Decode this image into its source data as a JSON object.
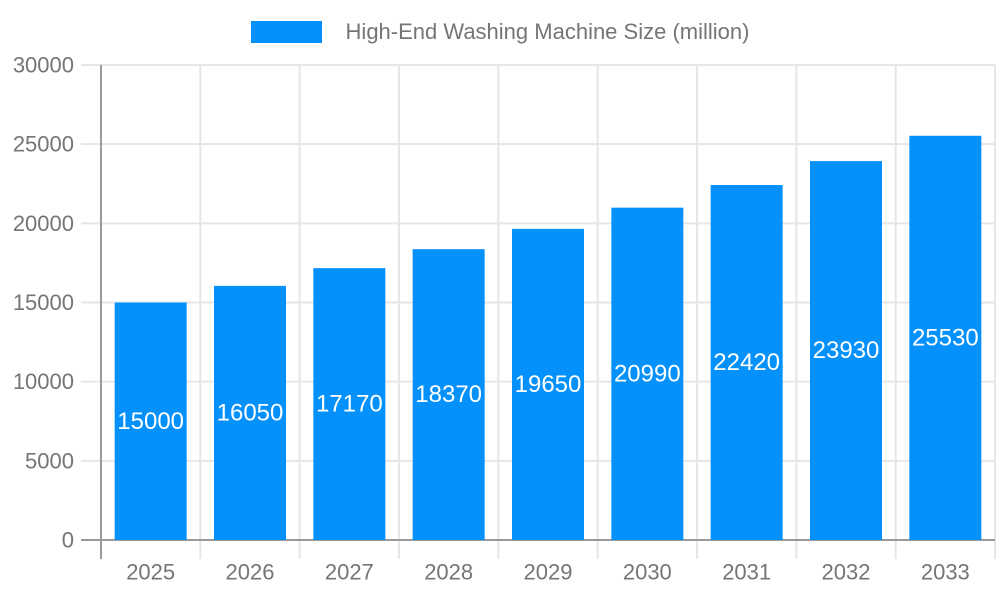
{
  "legend": {
    "label": "High-End Washing Machine Size (million)"
  },
  "colors": {
    "bar": "#0591fb",
    "grid": "#e6e6e6",
    "axis_line": "#9a9a9a",
    "axis_text": "#757575",
    "value_label_text": "#ffffff",
    "background": "#ffffff"
  },
  "chart_data": {
    "type": "bar",
    "title": "High-End Washing Machine Size (million)",
    "series": [
      {
        "name": "High-End Washing Machine Size (million)",
        "values": [
          15000,
          16050,
          17170,
          18370,
          19650,
          20990,
          22420,
          23930,
          25530
        ]
      }
    ],
    "categories": [
      "2025",
      "2026",
      "2027",
      "2028",
      "2029",
      "2030",
      "2031",
      "2032",
      "2033"
    ],
    "values": [
      15000,
      16050,
      17170,
      18370,
      19650,
      20990,
      22420,
      23930,
      25530
    ],
    "value_labels": [
      "15000",
      "16050",
      "17170",
      "18370",
      "19650",
      "20990",
      "22420",
      "23930",
      "25530"
    ],
    "value_label_position": "inside-center",
    "xlabel": "",
    "ylabel": "",
    "ylim": [
      0,
      30000
    ],
    "yticks": [
      0,
      5000,
      10000,
      15000,
      20000,
      25000,
      30000
    ],
    "grid": true,
    "legend_position": "top-center"
  }
}
